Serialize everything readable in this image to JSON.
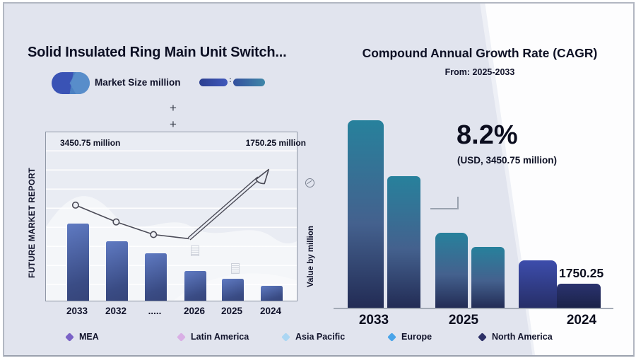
{
  "page": {
    "left": {
      "title": "Solid Insulated Ring Main Unit Switch...",
      "legend_label": "Market Size million",
      "colon": ":",
      "plus_marks": [
        "+",
        "+"
      ],
      "y_axis_left": "FUTURE MARKET REPORT",
      "y_axis_right": "Value by million"
    },
    "right": {
      "title": "Compound Annual Growth Rate (CAGR)",
      "subtitle": "From: 2025-2033",
      "cagr_value": "8.2%",
      "cagr_note": "(USD, 3450.75 million)",
      "bar_value_label": "1750.25"
    },
    "legend": {
      "items": [
        {
          "label": "MEA",
          "color": "#7a62c6"
        },
        {
          "label": "Latin America",
          "color": "#d9afe5"
        },
        {
          "label": "Asia Pacific",
          "color": "#abd6f3"
        },
        {
          "label": "Europe",
          "color": "#49a4e9"
        },
        {
          "label": "North America",
          "color": "#2d3067"
        }
      ]
    },
    "colors": {
      "background": "#e1e4ee",
      "left_bar_top": "#5f7ac2",
      "left_bar_bottom": "#37477c",
      "right_bar_teal_top": "#27819c",
      "right_bar_navy_bottom": "#222b54",
      "trend_line": "#4b4b57"
    }
  },
  "chart_data": [
    {
      "type": "bar",
      "title": "Market Size million",
      "categories": [
        "2033",
        "2032",
        ".....",
        "2026",
        "2025",
        "2024"
      ],
      "values_pct_of_max": [
        45.8,
        35.4,
        28.3,
        17.9,
        12.9,
        8.8
      ],
      "annotations": [
        {
          "text": "3450.75 million",
          "position": "top-left"
        },
        {
          "text": "1750.25 million",
          "position": "top-right"
        }
      ],
      "trend_line": {
        "marker_points_pct": [
          [
            11.8,
            43.3
          ],
          [
            28.0,
            53.3
          ],
          [
            42.9,
            60.8
          ]
        ],
        "elbow_point_pct": [
          57.1,
          63.3
        ],
        "arrow_tip_pct": [
          88.8,
          22.1
        ],
        "description": "declining line with circle markers, then rising outlined arrow"
      },
      "xlabel": "",
      "ylabel": "Value by million",
      "grid": true,
      "legend_position": "top"
    },
    {
      "type": "grouped-bar",
      "title": "Compound Annual Growth Rate (CAGR)",
      "subtitle": "From: 2025-2033",
      "categories": [
        "2033",
        "2025",
        "2024"
      ],
      "series": [
        {
          "name": "bar-1",
          "values_pct_of_max": [
            100,
            40.2,
            25.6
          ]
        },
        {
          "name": "bar-2",
          "values_pct_of_max": [
            70.3,
            32.7,
            13.2
          ]
        }
      ],
      "cagr": "8.2%",
      "note": "(USD, 3450.75 million)",
      "data_label": {
        "text": "1750.25",
        "category": "2024"
      },
      "grid": false,
      "legend_position": "bottom"
    }
  ]
}
